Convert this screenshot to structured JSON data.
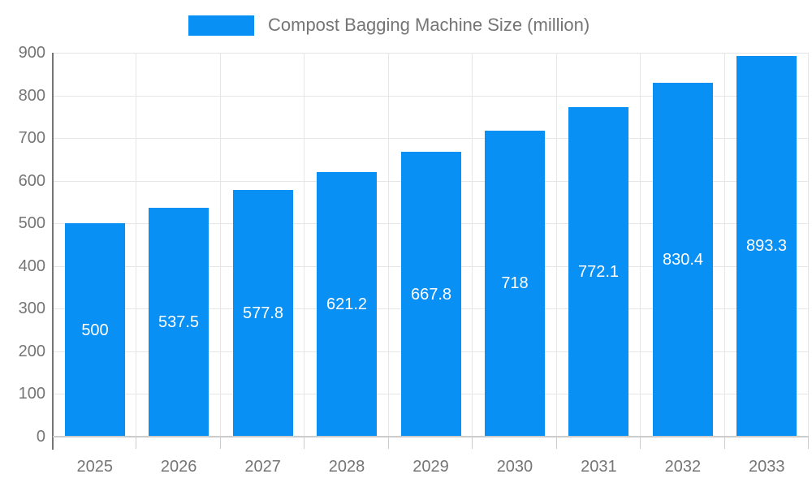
{
  "chart_data": {
    "type": "bar",
    "title": "Compost Bagging Machine Size (million)",
    "legend": [
      "Compost Bagging Machine Size (million)"
    ],
    "legend_position": "top",
    "categories": [
      "2025",
      "2026",
      "2027",
      "2028",
      "2029",
      "2030",
      "2031",
      "2032",
      "2033"
    ],
    "series": [
      {
        "name": "Compost Bagging Machine Size (million)",
        "values": [
          500,
          537.5,
          577.8,
          621.2,
          667.8,
          718,
          772.1,
          830.4,
          893.3
        ],
        "value_labels": [
          "500",
          "537.5",
          "577.8",
          "621.2",
          "667.8",
          "718",
          "772.1",
          "830.4",
          "893.3"
        ]
      }
    ],
    "xlabel": "",
    "ylabel": "",
    "ylim": [
      0,
      900
    ],
    "y_tick_step": 100,
    "y_tick_labels": [
      "0",
      "100",
      "200",
      "300",
      "400",
      "500",
      "600",
      "700",
      "800",
      "900"
    ],
    "grid": true,
    "value_label_position": "inside-center",
    "colors": {
      "bar": "#0990F5",
      "bar_label_text": "#ffffff",
      "axis_text": "#757575",
      "legend_text": "#757575",
      "grid_line": "#e6e6e6",
      "y_axis_line": "#757575",
      "x_axis_line": "#cccccc",
      "tick_line": "#cccccc",
      "background": "#ffffff"
    }
  }
}
